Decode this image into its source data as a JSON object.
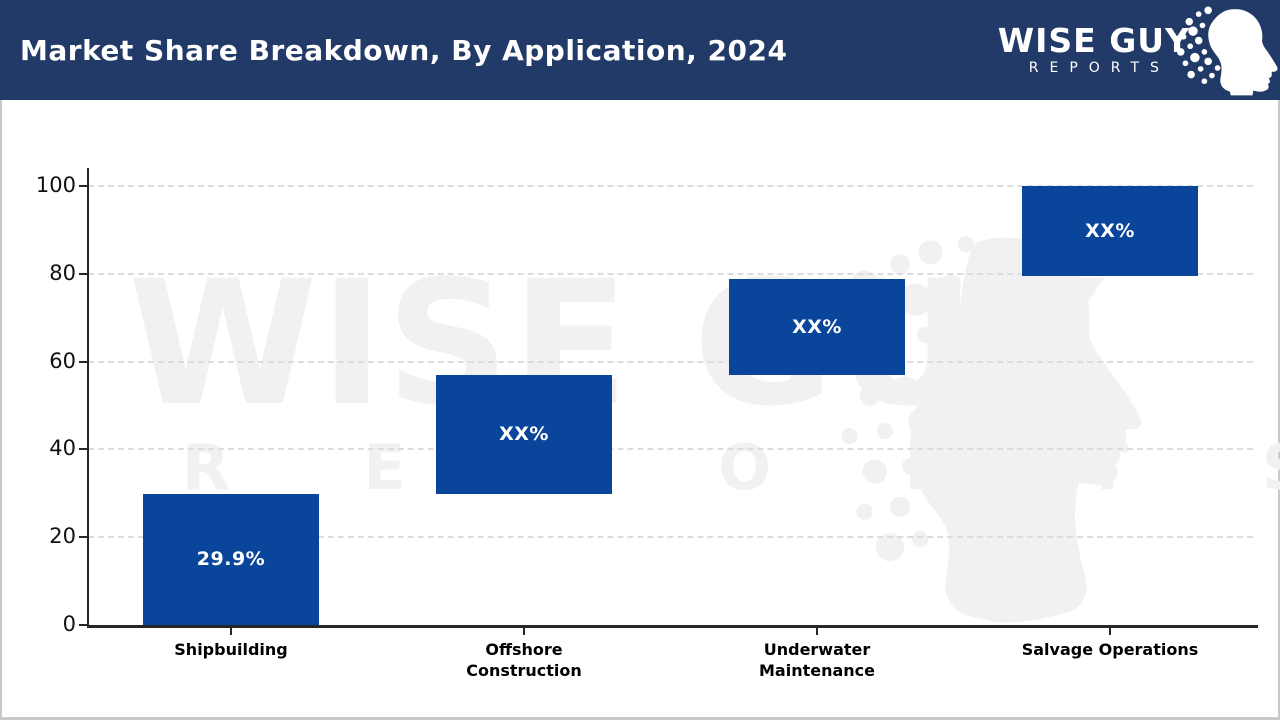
{
  "header": {
    "title": "Market Share Breakdown, By Application, 2024",
    "logo_line1": "WISE GUY",
    "logo_line2": "REPORTS"
  },
  "watermark": {
    "line1": "WISE GUY",
    "line2": "R E P O R T S"
  },
  "colors": {
    "header_bg": "#223A67",
    "bar_fill": "#0A459C",
    "gridline": "#DCDCDC",
    "axis": "#262626",
    "bar_label_text": "#FFFFFF",
    "watermark": "#F1F1F3"
  },
  "chart_data": {
    "type": "bar",
    "subtype": "waterfall",
    "title": "Market Share Breakdown, By Application, 2024",
    "categories": [
      "Shipbuilding",
      "Offshore Construction",
      "Underwater Maintenance",
      "Salvage Operations"
    ],
    "category_label_lines": [
      [
        "Shipbuilding"
      ],
      [
        "Offshore",
        "Construction"
      ],
      [
        "Underwater",
        "Maintenance"
      ],
      [
        "Salvage Operations"
      ]
    ],
    "segments": [
      {
        "category": "Shipbuilding",
        "start": 0,
        "end": 29.9,
        "value_label": "29.9%"
      },
      {
        "category": "Offshore Construction",
        "start": 29.9,
        "end": 56.9,
        "value_label": "XX%"
      },
      {
        "category": "Underwater Maintenance",
        "start": 56.9,
        "end": 78.9,
        "value_label": "XX%"
      },
      {
        "category": "Salvage Operations",
        "start": 79.4,
        "end": 100,
        "value_label": "XX%"
      }
    ],
    "ylabel": "",
    "xlabel": "",
    "ylim": [
      0,
      104
    ],
    "yticks": [
      0,
      20,
      40,
      60,
      80,
      100
    ],
    "grid": "horizontal-dashed",
    "legend": "none"
  }
}
